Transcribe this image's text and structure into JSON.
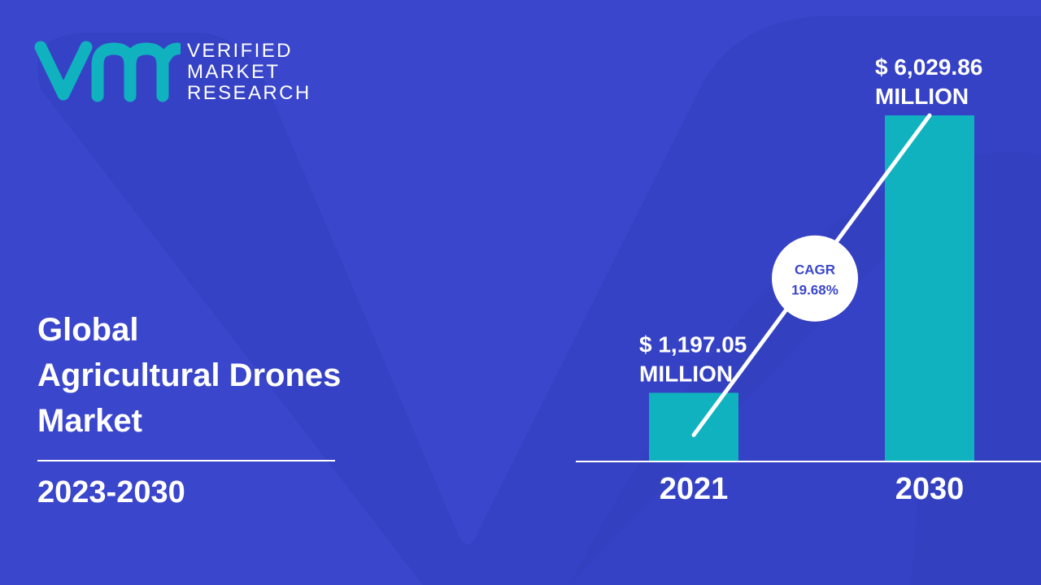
{
  "brand": {
    "lines": [
      "VERIFIED",
      "MARKET",
      "RESEARCH"
    ],
    "colors": {
      "mark": "#10b2bf",
      "background": "#3a46cc",
      "shape": "#2c3bb3"
    }
  },
  "report": {
    "title_lines": [
      "Global",
      "Agricultural Drones",
      "Market"
    ],
    "period": "2023-2030"
  },
  "chart_data": {
    "type": "bar",
    "categories": [
      "2021",
      "2030"
    ],
    "values": [
      1197.05,
      6029.86
    ],
    "value_labels": [
      [
        "$ 1,197.05",
        "MILLION"
      ],
      [
        "$ 6,029.86",
        "MILLION"
      ]
    ],
    "cagr": {
      "label": "CAGR",
      "value": "19.68%"
    },
    "bar_color": "#10b2bf",
    "title": "",
    "xlabel": "",
    "ylabel": ""
  }
}
